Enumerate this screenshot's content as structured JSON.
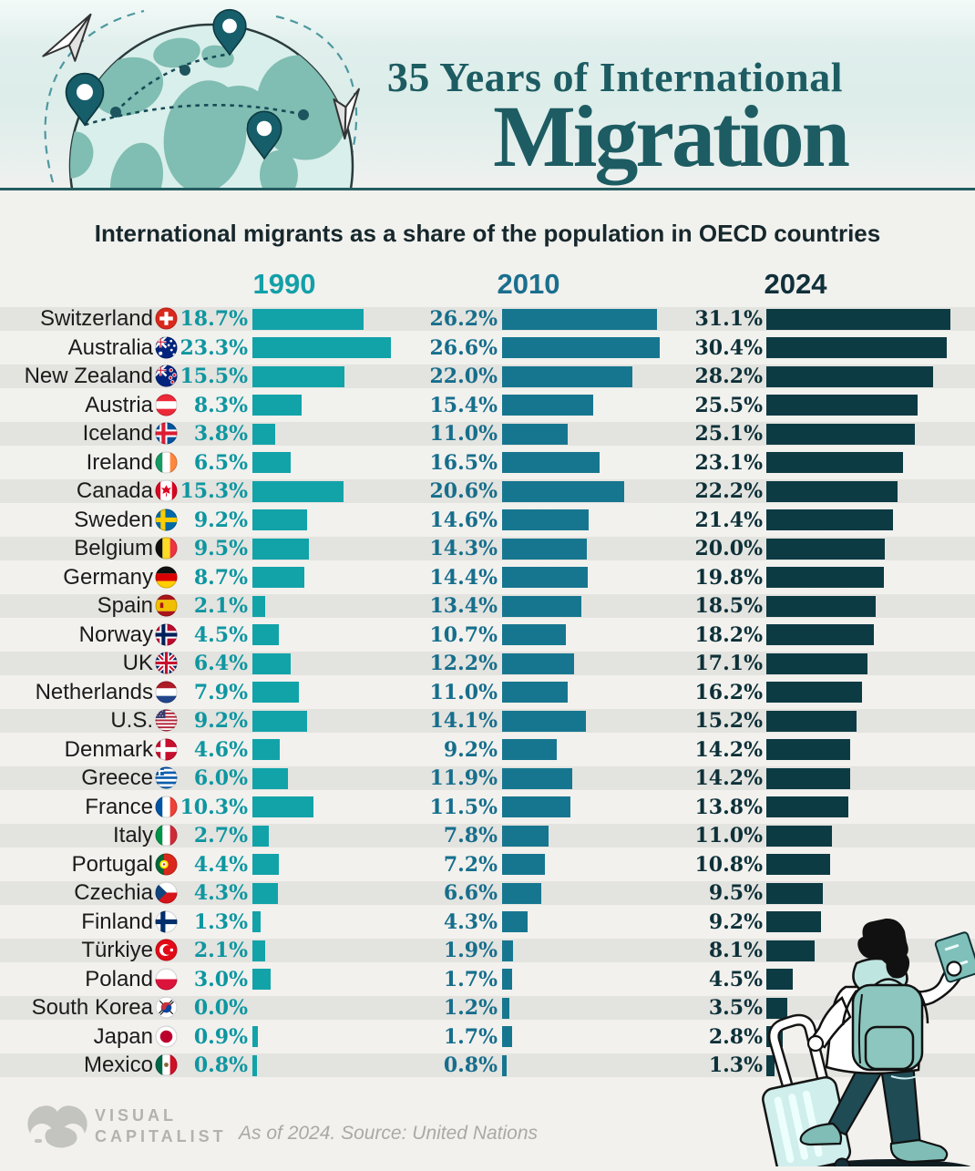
{
  "header": {
    "title_line1": "35 Years of International",
    "title_line2": "Migration"
  },
  "chart_data": {
    "type": "bar",
    "title": "35 Years of International Migration",
    "subtitle": "International migrants as a share of the population in OECD countries",
    "value_suffix": "%",
    "xlim": [
      0,
      32
    ],
    "grid": false,
    "legend_position": "column-headers",
    "categories": [
      "Switzerland",
      "Australia",
      "New Zealand",
      "Austria",
      "Iceland",
      "Ireland",
      "Canada",
      "Sweden",
      "Belgium",
      "Germany",
      "Spain",
      "Norway",
      "UK",
      "Netherlands",
      "U.S.",
      "Denmark",
      "Greece",
      "France",
      "Italy",
      "Portugal",
      "Czechia",
      "Finland",
      "Türkiye",
      "Poland",
      "South Korea",
      "Japan",
      "Mexico"
    ],
    "series": [
      {
        "name": "1990",
        "color": "#12a3a9",
        "text_color": "#0e96a0",
        "header_color": "#12a0a8",
        "values": [
          18.7,
          23.3,
          15.5,
          8.3,
          3.8,
          6.5,
          15.3,
          9.2,
          9.5,
          8.7,
          2.1,
          4.5,
          6.4,
          7.9,
          9.2,
          4.6,
          6.0,
          10.3,
          2.7,
          4.4,
          4.3,
          1.3,
          2.1,
          3.0,
          0.0,
          0.9,
          0.8
        ]
      },
      {
        "name": "2010",
        "color": "#17768f",
        "text_color": "#166e8c",
        "header_color": "#1b6f8d",
        "values": [
          26.2,
          26.6,
          22.0,
          15.4,
          11.0,
          16.5,
          20.6,
          14.6,
          14.3,
          14.4,
          13.4,
          10.7,
          12.2,
          11.0,
          14.1,
          9.2,
          11.9,
          11.5,
          7.8,
          7.2,
          6.6,
          4.3,
          1.9,
          1.7,
          1.2,
          1.7,
          0.8
        ]
      },
      {
        "name": "2024",
        "color": "#0d3b44",
        "text_color": "#0d3038",
        "header_color": "#10303a",
        "values": [
          31.1,
          30.4,
          28.2,
          25.5,
          25.1,
          23.1,
          22.2,
          21.4,
          20.0,
          19.8,
          18.5,
          18.2,
          17.1,
          16.2,
          15.2,
          14.2,
          14.2,
          13.8,
          11.0,
          10.8,
          9.5,
          9.2,
          8.1,
          4.5,
          3.5,
          2.8,
          1.3
        ]
      }
    ]
  },
  "flags": {
    "Switzerland": {
      "kind": "swiss"
    },
    "Australia": {
      "kind": "ujstars",
      "star": "#ffffff"
    },
    "New Zealand": {
      "kind": "ujstars",
      "star": "nz"
    },
    "Austria": {
      "kind": "h",
      "colors": [
        "#ed2939",
        "#ffffff",
        "#ed2939"
      ]
    },
    "Iceland": {
      "kind": "nordic",
      "bg": "#02529c",
      "cross": "#ffffff",
      "inner": "#dc1e35"
    },
    "Ireland": {
      "kind": "v",
      "colors": [
        "#169b62",
        "#ffffff",
        "#ff883e"
      ]
    },
    "Canada": {
      "kind": "canada"
    },
    "Sweden": {
      "kind": "nordic",
      "bg": "#006aa7",
      "cross": "#fecc00"
    },
    "Belgium": {
      "kind": "v",
      "colors": [
        "#101010",
        "#fdda24",
        "#ef3340"
      ]
    },
    "Germany": {
      "kind": "h",
      "colors": [
        "#101010",
        "#dd0000",
        "#ffce00"
      ]
    },
    "Spain": {
      "kind": "spain"
    },
    "Norway": {
      "kind": "nordic",
      "bg": "#ba0c2f",
      "cross": "#ffffff",
      "inner": "#00205b"
    },
    "UK": {
      "kind": "uj"
    },
    "Netherlands": {
      "kind": "h",
      "colors": [
        "#ae1c28",
        "#ffffff",
        "#21468b"
      ]
    },
    "U.S.": {
      "kind": "us"
    },
    "Denmark": {
      "kind": "nordic",
      "bg": "#c8102e",
      "cross": "#ffffff"
    },
    "Greece": {
      "kind": "greece"
    },
    "France": {
      "kind": "v",
      "colors": [
        "#0055a4",
        "#ffffff",
        "#ef4135"
      ]
    },
    "Italy": {
      "kind": "v",
      "colors": [
        "#009246",
        "#ffffff",
        "#ce2b37"
      ]
    },
    "Portugal": {
      "kind": "portugal"
    },
    "Czechia": {
      "kind": "czech"
    },
    "Finland": {
      "kind": "nordic",
      "bg": "#ffffff",
      "cross": "#002f6c"
    },
    "Türkiye": {
      "kind": "crescent"
    },
    "Poland": {
      "kind": "h",
      "colors": [
        "#ffffff",
        "#dc143c"
      ]
    },
    "South Korea": {
      "kind": "korea"
    },
    "Japan": {
      "kind": "disc"
    },
    "Mexico": {
      "kind": "mexico"
    }
  },
  "theme": {
    "page_bg": "#f2f1ee",
    "stripe": "#e3e3df",
    "title_color": "#1d5c62",
    "divider_color": "#235c60",
    "subtitle_color": "#17282c",
    "label_color": "#1b1b1b"
  },
  "footer": {
    "brand_line1": "VISUAL",
    "brand_line2": "CAPITALIST",
    "source_note": "As of 2024. Source: United Nations"
  },
  "icons": {
    "globe": "globe-with-location-pins-illustration",
    "planes": "paper-plane-icons",
    "traveler": "traveler-with-suitcase-illustration",
    "brand": "visual-capitalist-binoculars-logo"
  }
}
